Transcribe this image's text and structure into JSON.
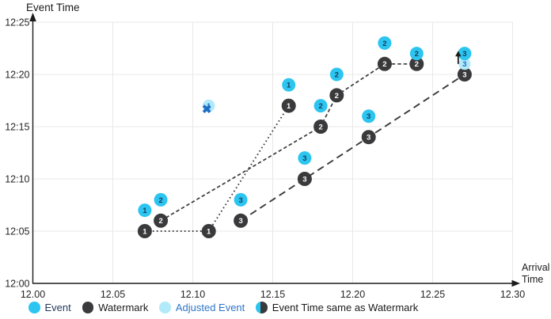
{
  "chart_data": {
    "type": "scatter",
    "title": "",
    "x_axis": {
      "label": "Arrival Time",
      "min": 12.0,
      "max": 12.3,
      "ticks": [
        {
          "v": 12.0,
          "label": "12.00"
        },
        {
          "v": 12.05,
          "label": "12.05"
        },
        {
          "v": 12.1,
          "label": "12.10"
        },
        {
          "v": 12.15,
          "label": "12.15"
        },
        {
          "v": 12.2,
          "label": "12.20"
        },
        {
          "v": 12.25,
          "label": "12.25"
        },
        {
          "v": 12.3,
          "label": "12.30"
        }
      ]
    },
    "y_axis": {
      "label": "Event Time",
      "min_minutes": 0,
      "max_minutes": 25,
      "ticks": [
        {
          "m": 0,
          "label": "12:00"
        },
        {
          "m": 5,
          "label": "12:05"
        },
        {
          "m": 10,
          "label": "12:10"
        },
        {
          "m": 15,
          "label": "12:15"
        },
        {
          "m": 20,
          "label": "12:20"
        },
        {
          "m": 25,
          "label": "12:25"
        }
      ]
    },
    "grid": true,
    "series": {
      "events": [
        {
          "label": "1",
          "arrival": 12.07,
          "event_min": 7
        },
        {
          "label": "1",
          "arrival": 12.16,
          "event_min": 19
        },
        {
          "label": "2",
          "arrival": 12.08,
          "event_min": 8
        },
        {
          "label": "2",
          "arrival": 12.18,
          "event_min": 17
        },
        {
          "label": "2",
          "arrival": 12.19,
          "event_min": 20
        },
        {
          "label": "2",
          "arrival": 12.22,
          "event_min": 23
        },
        {
          "label": "2",
          "arrival": 12.24,
          "event_min": 22
        },
        {
          "label": "3",
          "arrival": 12.13,
          "event_min": 8
        },
        {
          "label": "3",
          "arrival": 12.17,
          "event_min": 12
        },
        {
          "label": "3",
          "arrival": 12.21,
          "event_min": 16
        },
        {
          "label": "3",
          "arrival": 12.27,
          "event_min": 22
        }
      ],
      "watermarks": [
        {
          "label": "1",
          "arrival": 12.07,
          "event_min": 5
        },
        {
          "label": "1",
          "arrival": 12.11,
          "event_min": 5
        },
        {
          "label": "1",
          "arrival": 12.16,
          "event_min": 17
        },
        {
          "label": "2",
          "arrival": 12.08,
          "event_min": 6
        },
        {
          "label": "2",
          "arrival": 12.18,
          "event_min": 15
        },
        {
          "label": "2",
          "arrival": 12.19,
          "event_min": 18
        },
        {
          "label": "2",
          "arrival": 12.22,
          "event_min": 21
        },
        {
          "label": "2",
          "arrival": 12.24,
          "event_min": 21
        },
        {
          "label": "3",
          "arrival": 12.13,
          "event_min": 6
        },
        {
          "label": "3",
          "arrival": 12.17,
          "event_min": 10
        },
        {
          "label": "3",
          "arrival": 12.21,
          "event_min": 14
        },
        {
          "label": "3",
          "arrival": 12.27,
          "event_min": 20
        }
      ],
      "adjusted_events": [
        {
          "label": "3",
          "arrival": 12.27,
          "event_min": 21
        }
      ],
      "rejected_events": [
        {
          "label": "1",
          "arrival": 12.11,
          "event_min": 17
        }
      ]
    },
    "watermark_lines": [
      {
        "series": "1",
        "style": "dotted",
        "points": [
          [
            12.07,
            5
          ],
          [
            12.11,
            5
          ],
          [
            12.16,
            17
          ]
        ]
      },
      {
        "series": "2",
        "style": "dashed",
        "points": [
          [
            12.08,
            6
          ],
          [
            12.18,
            15
          ],
          [
            12.19,
            18
          ],
          [
            12.22,
            21
          ],
          [
            12.24,
            21
          ]
        ]
      },
      {
        "series": "3",
        "style": "longdash",
        "points": [
          [
            12.13,
            6
          ],
          [
            12.17,
            10
          ],
          [
            12.21,
            14
          ],
          [
            12.27,
            20
          ]
        ]
      }
    ],
    "annotations": [
      {
        "type": "up-arrow",
        "arrival": 12.266,
        "from_min": 21.0,
        "to_min": 22.1
      }
    ]
  },
  "legend": {
    "items": [
      {
        "label": "Event",
        "text_color": "#243a5e",
        "icon_name": "event-dot-icon",
        "dot": {
          "type": "solid",
          "color": "#2cc5f0"
        }
      },
      {
        "label": "Watermark",
        "text_color": "#1a1a1a",
        "icon_name": "watermark-dot-icon",
        "dot": {
          "type": "solid",
          "color": "#3a3a3c"
        }
      },
      {
        "label": "Adjusted Event",
        "text_color": "#2e74c9",
        "icon_name": "adjusted-event-dot-icon",
        "dot": {
          "type": "solid",
          "color": "#b2eafa"
        }
      },
      {
        "label": "Event Time same as Watermark",
        "text_color": "#1a1a1a",
        "icon_name": "event-watermark-split-dot-icon",
        "dot": {
          "type": "split",
          "left": "#2cc5f0",
          "right": "#3a3a3c",
          "split_pct": 40
        }
      }
    ]
  },
  "colors": {
    "event": "#2cc5f0",
    "watermark": "#3a3a3c",
    "adjusted": "#b2eafa",
    "event_number": "#16395e",
    "watermark_number": "#ffffff",
    "adjusted_number": "#1c6fc0",
    "reject_x": "#1b6ec2",
    "grid": "#e8e8e8",
    "axis": "#1b1b1b",
    "tick_text": "#262626"
  },
  "icons": {
    "rejected_cross": "✖"
  }
}
